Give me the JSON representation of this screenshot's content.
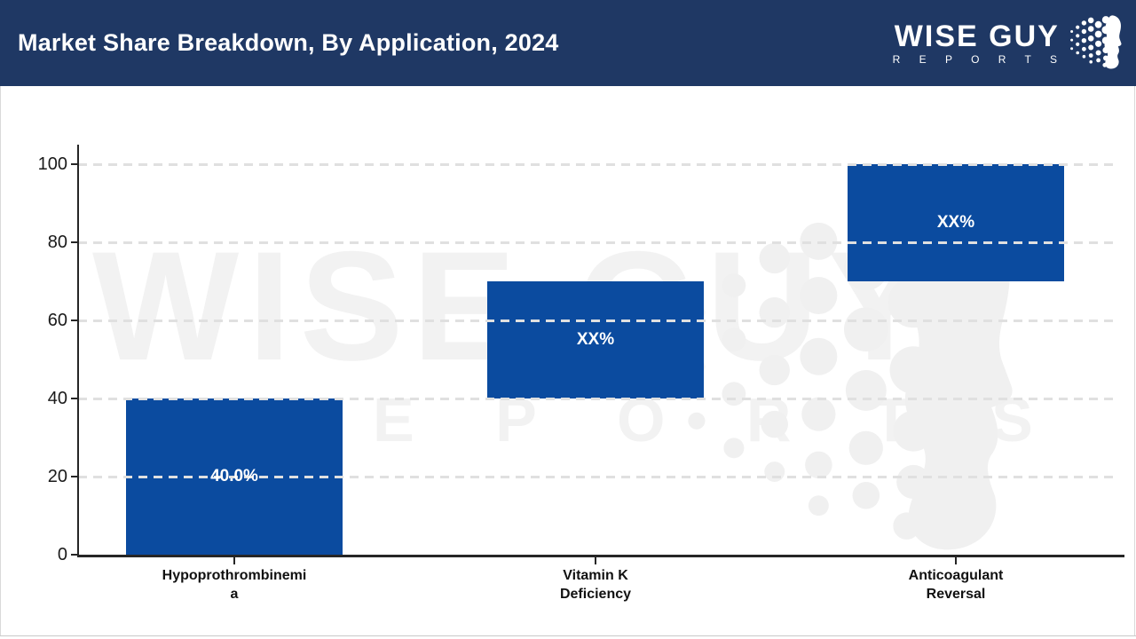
{
  "header": {
    "title": "Market Share Breakdown, By Application, 2024",
    "bg_color": "#1f3864",
    "logo": {
      "line1": "WISE GUY",
      "line2": "R E P O R T S",
      "face_icon": "dotted-head-profile"
    }
  },
  "watermark": {
    "line1": "WISE GUY",
    "line2": "R E P O R T S",
    "face_icon": "dotted-head-profile"
  },
  "chart_data": {
    "type": "bar",
    "subtype": "stacked-waterfall-floating-bars",
    "title": "Market Share Breakdown, By Application, 2024",
    "categories": [
      "Hypoprothrombinemia",
      "Vitamin K Deficiency",
      "Anticoagulant Reversal"
    ],
    "category_label_lines": [
      [
        "Hypoprothrombinemi",
        "a"
      ],
      [
        "Vitamin K",
        "Deficiency"
      ],
      [
        "Anticoagulant",
        "Reversal"
      ]
    ],
    "segments": [
      {
        "category": "Hypoprothrombinemia",
        "start": 0,
        "end": 40,
        "label": "40.0%"
      },
      {
        "category": "Vitamin K Deficiency",
        "start": 40,
        "end": 70,
        "label": "XX%"
      },
      {
        "category": "Anticoagulant Reversal",
        "start": 70,
        "end": 100,
        "label": "XX%"
      }
    ],
    "y_ticks": [
      0,
      20,
      40,
      60,
      80,
      100
    ],
    "ylim": [
      0,
      105
    ],
    "xlabel": "",
    "ylabel": "",
    "grid": "horizontal-dashed",
    "legend": "none",
    "bar_color": "#0b4b9f",
    "value_label_color": "#ffffff"
  }
}
